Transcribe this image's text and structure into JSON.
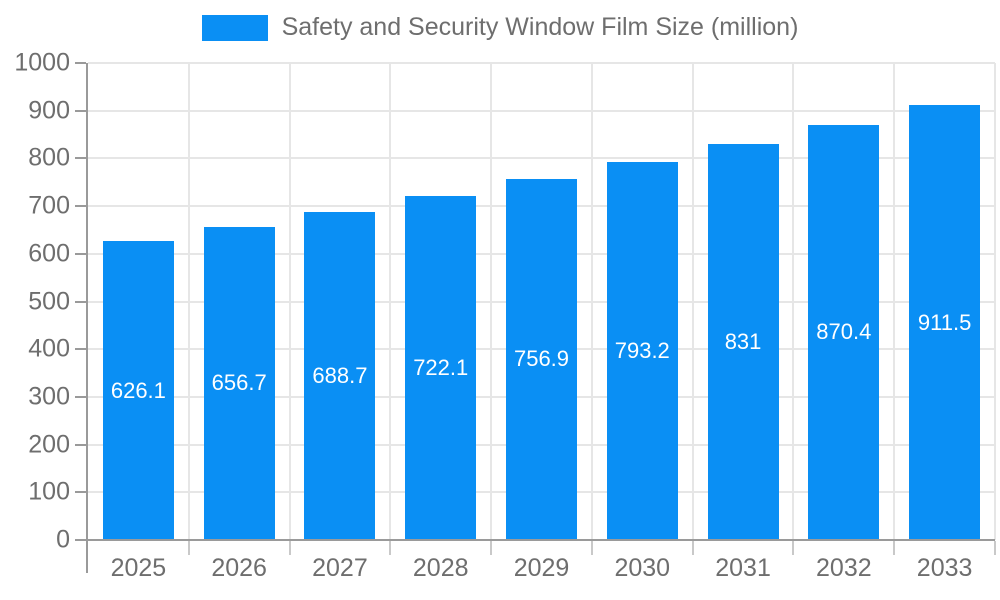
{
  "page": {
    "background": "#ffffff"
  },
  "legend": {
    "label": "Safety and Security Window Film Size (million)"
  },
  "chart_data": {
    "type": "bar",
    "title": "Safety and Security Window Film Size (million)",
    "series_name": "Safety and Security Window Film Size (million)",
    "categories": [
      "2025",
      "2026",
      "2027",
      "2028",
      "2029",
      "2030",
      "2031",
      "2032",
      "2033"
    ],
    "values": [
      626.1,
      656.7,
      688.7,
      722.1,
      756.9,
      793.2,
      831,
      870.4,
      911.5
    ],
    "value_labels": [
      "626.1",
      "656.7",
      "688.7",
      "722.1",
      "756.9",
      "793.2",
      "831",
      "870.4",
      "911.5"
    ],
    "xlabel": "",
    "ylabel": "",
    "ylim": [
      0,
      1000
    ],
    "yticks": [
      0,
      100,
      200,
      300,
      400,
      500,
      600,
      700,
      800,
      900,
      1000
    ],
    "grid": true,
    "legend_position": "top",
    "colors": {
      "bar": "#0a8ff4",
      "value_label": "#ffffff",
      "axis_label": "#6e6e6e",
      "legend_text": "#6e6e6e",
      "gridline": "#e6e6e6",
      "axis_line": "#9a9a9a",
      "x_tick": "#c9c9c9"
    }
  }
}
